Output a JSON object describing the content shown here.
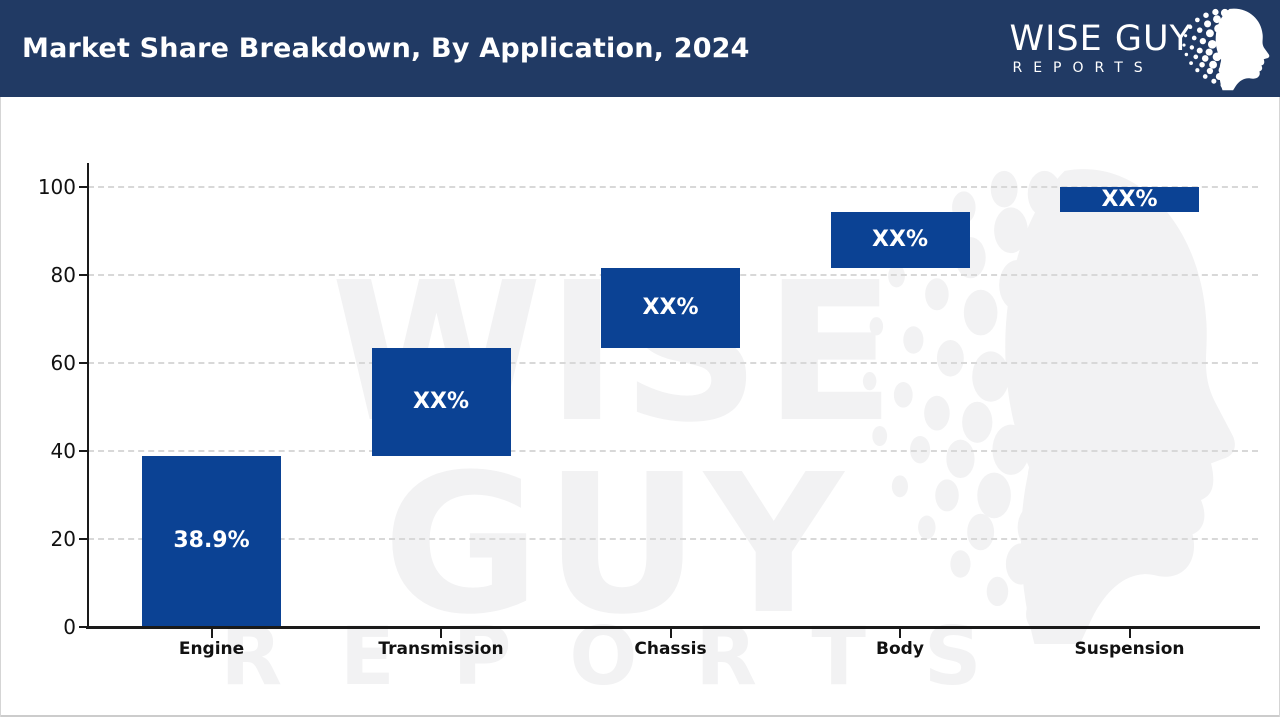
{
  "header": {
    "title": "Market Share Breakdown, By Application, 2024",
    "logo": {
      "line1": "WISE GUY",
      "line2": "REPORTS"
    }
  },
  "watermark": {
    "line1": "WISE GUY",
    "line2": "REPORTS"
  },
  "colors": {
    "header_bg": "#213a64",
    "bar": "#0b4294",
    "axis": "#1a1a1a",
    "grid": "#d8d8d8",
    "bar_label": "#ffffff",
    "watermark": "#f2f2f3"
  },
  "chart_data": {
    "type": "bar",
    "subtype": "waterfall",
    "title": "Market Share Breakdown, By Application, 2024",
    "categories": [
      "Engine",
      "Transmission",
      "Chassis",
      "Body",
      "Suspension"
    ],
    "segments": [
      {
        "category": "Engine",
        "start": 0,
        "end": 38.9,
        "label": "38.9%"
      },
      {
        "category": "Transmission",
        "start": 38.9,
        "end": 63.4,
        "label": "XX%"
      },
      {
        "category": "Chassis",
        "start": 63.4,
        "end": 81.6,
        "label": "XX%"
      },
      {
        "category": "Body",
        "start": 81.6,
        "end": 94.3,
        "label": "XX%"
      },
      {
        "category": "Suspension",
        "start": 94.3,
        "end": 100,
        "label": "XX%"
      }
    ],
    "ylim": [
      0,
      104
    ],
    "yticks": [
      0,
      20,
      40,
      60,
      80,
      100
    ],
    "grid": "dashed-horizontal",
    "legend": null,
    "xlabel": "",
    "ylabel": ""
  }
}
